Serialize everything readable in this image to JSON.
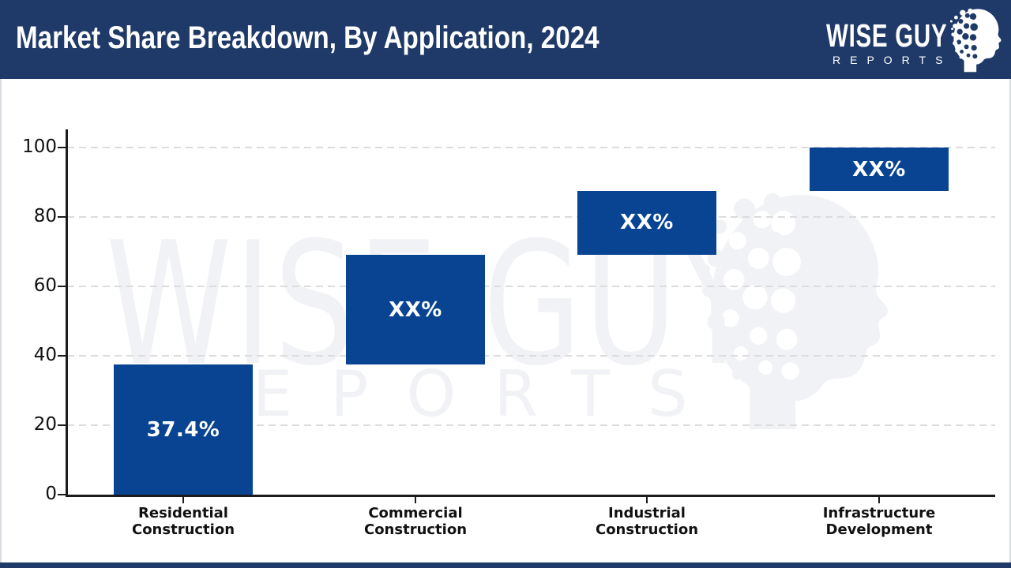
{
  "header": {
    "title": "Market Share Breakdown, By Application, 2024",
    "logo": {
      "brand": "WISE GUY",
      "sub": "REPORTS"
    }
  },
  "watermark": {
    "brand": "WISE GUY",
    "sub": "REPORTS"
  },
  "chart_data": {
    "type": "bar",
    "subtype": "waterfall",
    "title": "Market Share Breakdown, By Application, 2024",
    "categories": [
      "Residential Construction",
      "Commercial Construction",
      "Industrial Construction",
      "Infrastructure Development"
    ],
    "category_lines": [
      [
        "Residential",
        "Construction"
      ],
      [
        "Commercial",
        "Construction"
      ],
      [
        "Industrial",
        "Construction"
      ],
      [
        "Infrastructure",
        "Development"
      ]
    ],
    "segments": [
      {
        "start": 0,
        "end": 37.4,
        "label": "37.4%"
      },
      {
        "start": 37.4,
        "end": 69.1,
        "label": "XX%"
      },
      {
        "start": 69.1,
        "end": 87.5,
        "label": "XX%"
      },
      {
        "start": 87.5,
        "end": 100,
        "label": "XX%"
      }
    ],
    "ylim": [
      0,
      100
    ],
    "yticks": [
      0,
      20,
      40,
      60,
      80,
      100
    ],
    "grid": "horizontal-dashed",
    "legend": "none",
    "bar_color": "#094493",
    "bar_label_color": "#ffffff"
  },
  "colors": {
    "header_bg": "#1f3a68",
    "bar": "#094493",
    "grid": "#dcdcdc",
    "axis": "#1c1c1c",
    "watermark": "#f1f2f5"
  }
}
